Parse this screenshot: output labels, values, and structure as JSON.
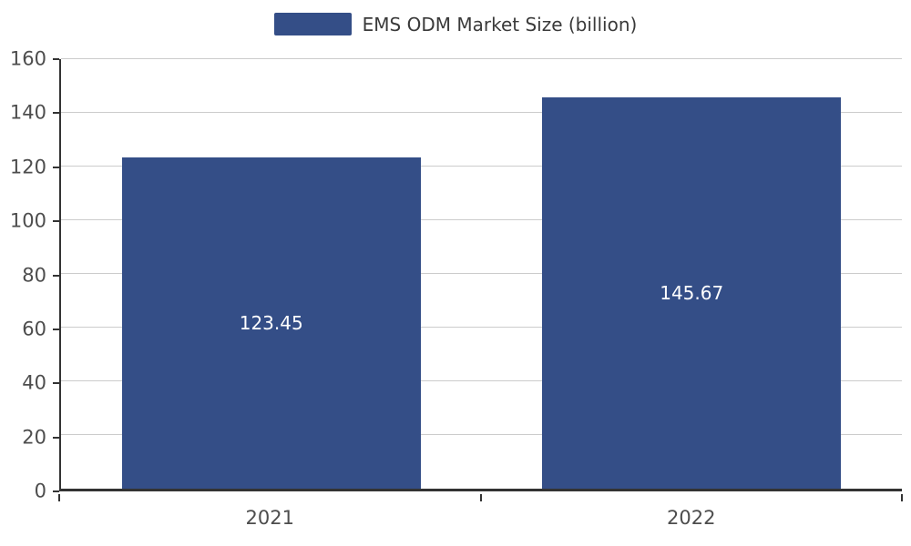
{
  "chart": {
    "legend_label": "EMS ODM Market Size (billion)"
  },
  "chart_data": {
    "type": "bar",
    "title": "",
    "categories": [
      "2021",
      "2022"
    ],
    "series": [
      {
        "name": "EMS ODM Market Size (billion)",
        "values": [
          123.45,
          145.67
        ]
      }
    ],
    "data_labels": [
      "123.45",
      "145.67"
    ],
    "xlabel": "",
    "ylabel": "",
    "ylim": [
      0,
      160
    ],
    "yticks": [
      0,
      20,
      40,
      60,
      80,
      100,
      120,
      140,
      160
    ],
    "grid": true,
    "legend_position": "top",
    "bar_width_ratio": 0.71,
    "colors": {
      "bar": "#344e87",
      "bar_label_text": "#ffffff",
      "grid": "#cccccc",
      "axis": "#333333",
      "tick_label": "#4d4d4d",
      "legend_text": "#3a3a3a",
      "background": "#ffffff"
    }
  }
}
